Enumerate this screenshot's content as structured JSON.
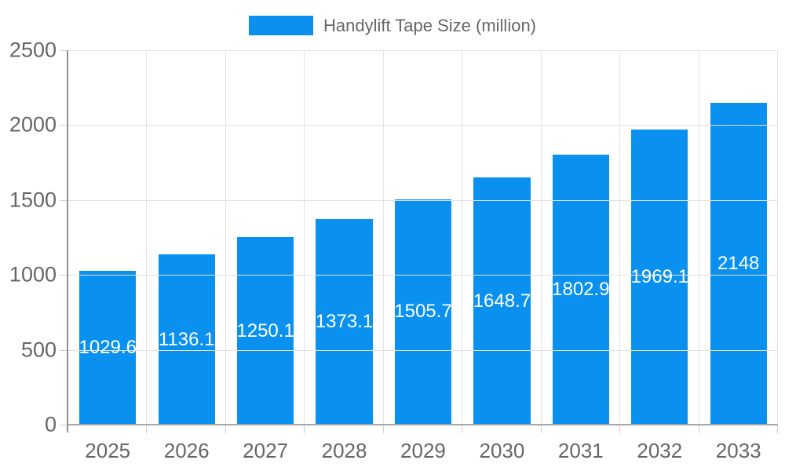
{
  "chart_data": {
    "type": "bar",
    "title": "Handylift Tape Size (million)",
    "legend": {
      "label": "Handylift Tape Size (million)",
      "position": "top"
    },
    "categories": [
      "2025",
      "2026",
      "2027",
      "2028",
      "2029",
      "2030",
      "2031",
      "2032",
      "2033"
    ],
    "series": [
      {
        "name": "Handylift Tape Size (million)",
        "values": [
          1029.6,
          1136.1,
          1250.1,
          1373.1,
          1505.7,
          1648.7,
          1802.9,
          1969.1,
          2148
        ],
        "value_labels": [
          "1029.6",
          "1136.1",
          "1250.1",
          "1373.1",
          "1505.7",
          "1648.7",
          "1802.9",
          "1969.1",
          "2148"
        ]
      }
    ],
    "xlabel": "",
    "ylabel": "",
    "ylim": [
      0,
      2500
    ],
    "y_ticks": [
      0,
      500,
      1000,
      1500,
      2000,
      2500
    ],
    "grid": true,
    "colors": {
      "bar": "#0a91f0",
      "bar_label": "#ffffff",
      "axis_text": "#666666",
      "grid_line": "#e2e2e2",
      "axis_line": "#919191",
      "baseline": "#a8a8a8",
      "tick": "#cfcfcf",
      "background": "#ffffff"
    }
  }
}
